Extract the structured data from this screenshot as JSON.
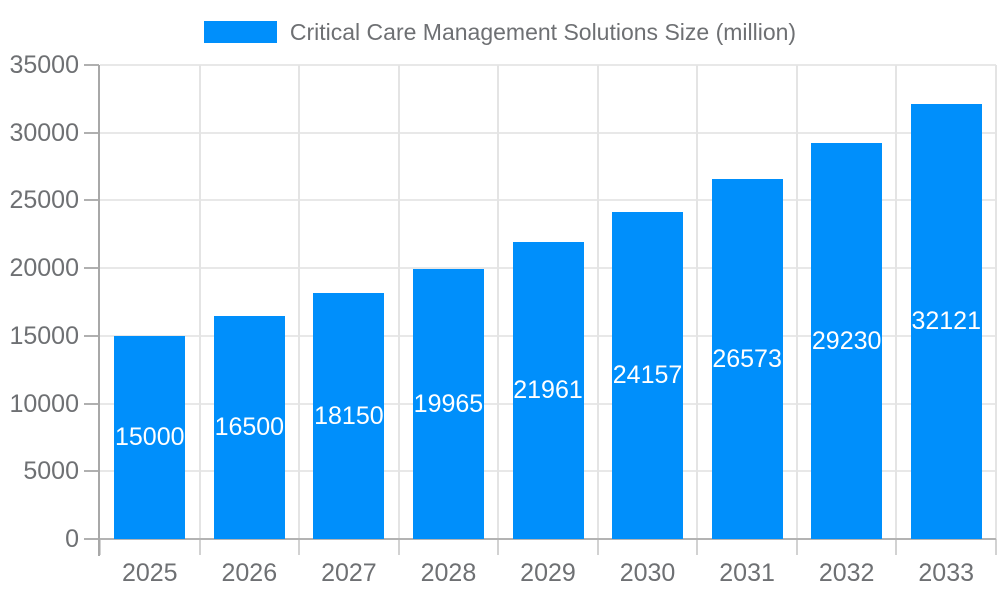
{
  "chart_data": {
    "type": "bar",
    "title": "Critical Care Management Solutions Size (million)",
    "categories": [
      "2025",
      "2026",
      "2027",
      "2028",
      "2029",
      "2030",
      "2031",
      "2032",
      "2033"
    ],
    "series": [
      {
        "name": "Critical Care Management Solutions Size (million)",
        "values": [
          15000,
          16500,
          18150,
          19965,
          21961,
          24157,
          26573,
          29230,
          32121
        ]
      }
    ],
    "value_labels": [
      "15000",
      "16500",
      "18150",
      "19965",
      "21961",
      "24157",
      "26573",
      "29230",
      "32121"
    ],
    "xlabel": "",
    "ylabel": "",
    "ylim": [
      0,
      35000
    ],
    "ytick_step": 5000,
    "ytick_labels": [
      "0",
      "5000",
      "10000",
      "15000",
      "20000",
      "25000",
      "30000",
      "35000"
    ],
    "grid": true,
    "legend_position": "top",
    "bar_labels": "white, centered inside bars"
  },
  "colors": {
    "bar": "#008FFB",
    "bar_label": "#FFFFFF",
    "grid": "#E8E8E8",
    "axis_line": "#A8A8A8",
    "text": "#6E7073",
    "background": "#FFFFFF"
  }
}
